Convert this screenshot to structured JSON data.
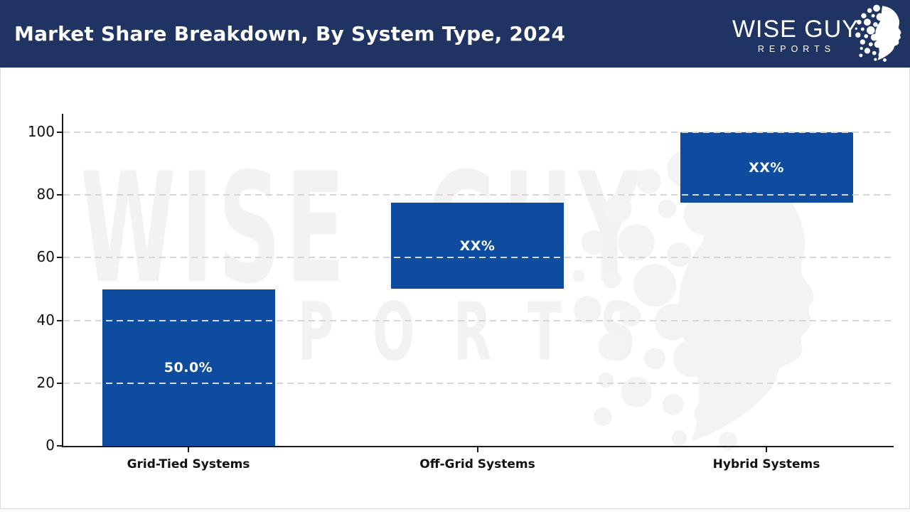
{
  "header": {
    "title": "Market Share Breakdown, By System Type, 2024",
    "bg_color": "#1f3463",
    "logo": {
      "line1": "WISE GUY",
      "line2": "REPORTS",
      "head_icon": "dotted-face-profile"
    }
  },
  "watermark": {
    "line1": "WISE GUY",
    "line2": "REPORTS",
    "color": "#f2f2f2"
  },
  "chart_data": {
    "type": "bar",
    "subtype": "waterfall-segments",
    "title": "Market Share Breakdown, By System Type, 2024",
    "categories": [
      "Grid-Tied Systems",
      "Off-Grid Systems",
      "Hybrid Systems"
    ],
    "segments": [
      {
        "category": "Grid-Tied Systems",
        "start": 0,
        "end": 50,
        "label": "50.0%"
      },
      {
        "category": "Off-Grid Systems",
        "start": 50,
        "end": 77.5,
        "label": "XX%"
      },
      {
        "category": "Hybrid Systems",
        "start": 77.5,
        "end": 100,
        "label": "XX%"
      }
    ],
    "xlabel": "",
    "ylabel": "",
    "yticks": [
      0,
      20,
      40,
      60,
      80,
      100
    ],
    "ylim": [
      0,
      106
    ],
    "bar_color": "#0d4c9e",
    "gridline_color": "#d6d6d6",
    "grid": "horizontal-dashed",
    "legend": "none"
  }
}
